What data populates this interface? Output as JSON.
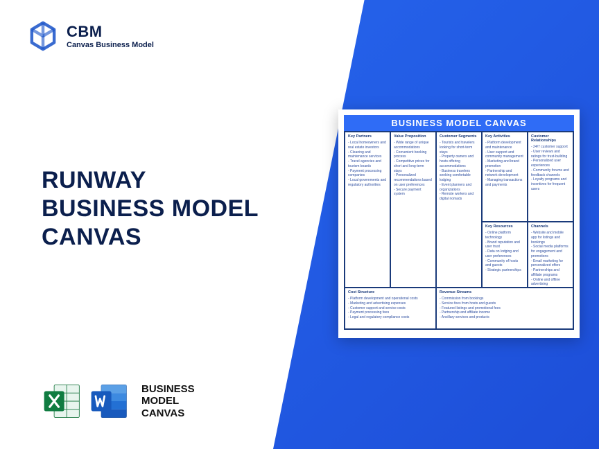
{
  "logo": {
    "abbr": "CBM",
    "full": "Canvas Business Model"
  },
  "title": {
    "line1": "RUNWAY",
    "line2": "BUSINESS MODEL",
    "line3": "CANVAS"
  },
  "formats": {
    "label_line1": "BUSINESS",
    "label_line2": "MODEL",
    "label_line3": "CANVAS"
  },
  "canvas": {
    "title": "BUSINESS MODEL CANVAS",
    "colors": {
      "header_bg": "#2f6cf6",
      "border": "#1a3a7a",
      "text": "#2f4fa0"
    },
    "sections": {
      "key_partners": {
        "header": "Key Partners",
        "items": "- Local homeowners and real estate investors\n- Cleaning and maintenance services\n- Travel agencies and tourism boards\n- Payment processing companies\n- Local governments and regulatory authorities"
      },
      "key_activities": {
        "header": "Key Activities",
        "items": "- Platform development and maintenance\n- User support and community management\n- Marketing and brand promotion\n- Partnership and network development\n- Managing transactions and payments"
      },
      "key_resources": {
        "header": "Key Resources",
        "items": "- Online platform technology\n- Brand reputation and user trust\n- Data on lodging and user preferences\n- Community of hosts and guests\n- Strategic partnerships"
      },
      "value_proposition": {
        "header": "Value Proposition",
        "items": "- Wide range of unique accommodations\n- Convenient booking process\n- Competitive prices for short and long-term stays\n- Personalized recommendations based on user preferences\n- Secure payment system"
      },
      "customer_relationships": {
        "header": "Customer Relationships",
        "items": "- 24/7 customer support\n- User reviews and ratings for trust-building\n- Personalized user experiences\n- Community forums and feedback channels\n- Loyalty programs and incentives for frequent users"
      },
      "channels": {
        "header": "Channels",
        "items": "- Website and mobile app for listings and bookings\n- Social media platforms for engagement and promotions\n- Email marketing for personalized offers\n- Partnerships and affiliate programs\n- Online and offline advertising"
      },
      "customer_segments": {
        "header": "Customer Segments",
        "items": "- Tourists and travelers looking for short-term stays\n- Property owners and hosts offering accommodations\n- Business travelers seeking comfortable lodging\n- Event planners and organizations\n- Remote workers and digital nomads"
      },
      "cost_structure": {
        "header": "Cost Structure",
        "items": "- Platform development and operational costs\n- Marketing and advertising expenses\n- Customer support and service costs\n- Payment processing fees\n- Legal and regulatory compliance costs"
      },
      "revenue_streams": {
        "header": "Revenue Streams",
        "items": "- Commission from bookings\n- Service fees from hosts and guests\n- Featured listings and promotional fees\n- Partnership and affiliate income\n- Ancillary services and products"
      }
    }
  }
}
